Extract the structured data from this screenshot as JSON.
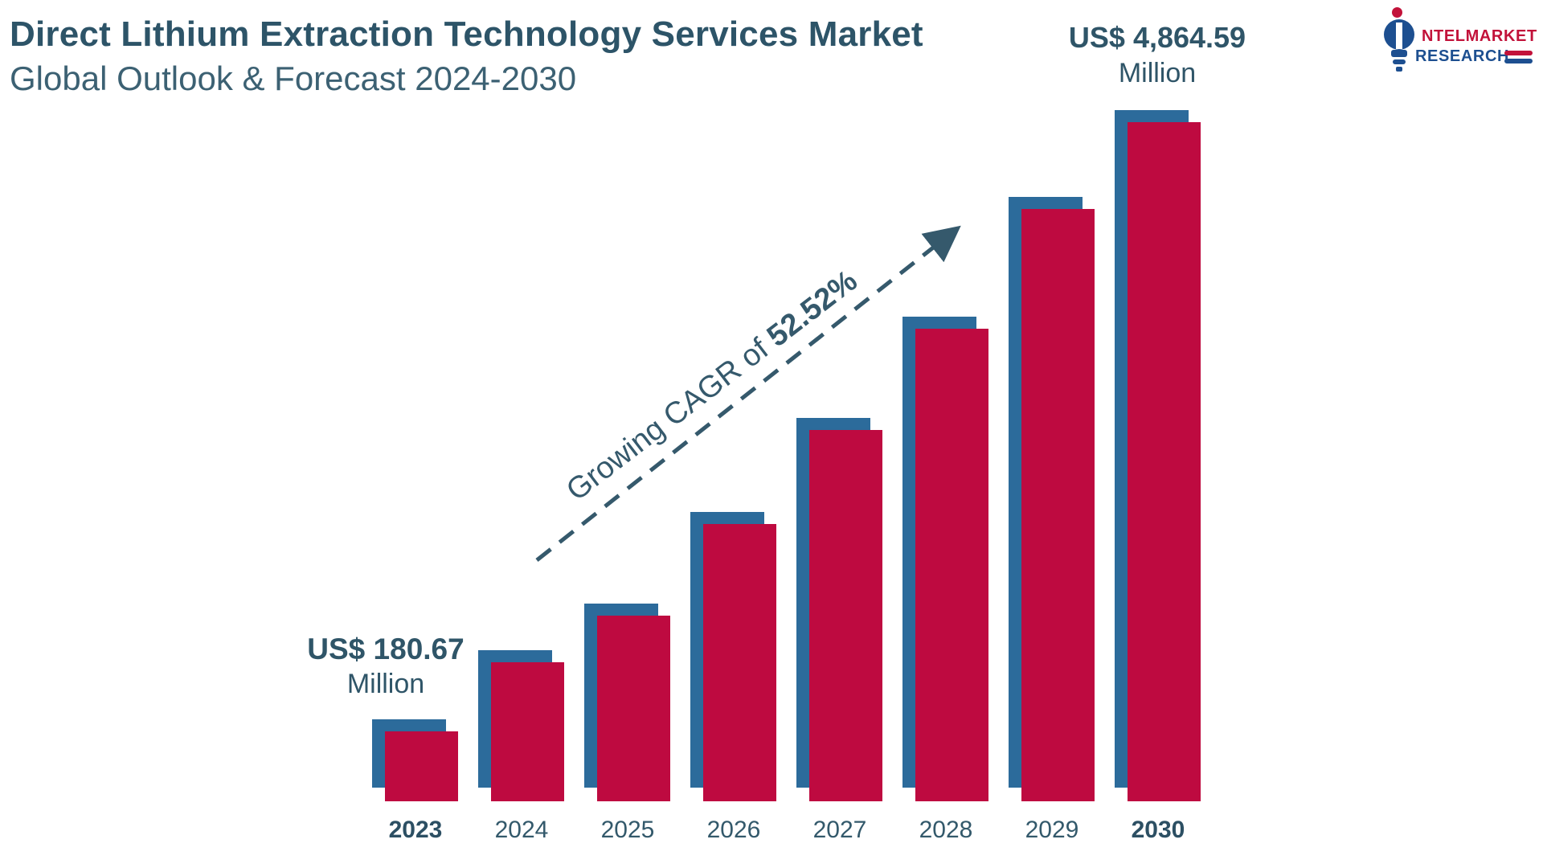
{
  "header": {
    "title": "Direct Lithium Extraction Technology Services Market",
    "subtitle": "Global Outlook & Forecast 2024-2030"
  },
  "logo": {
    "brand_line1": "NTELMARKET",
    "brand_line2": "RESEARCH",
    "icon": "lightbulb-i-icon",
    "colors": {
      "red": "#c2123a",
      "blue": "#1d4f90"
    }
  },
  "chart_data": {
    "type": "bar",
    "title": "Direct Lithium Extraction Technology Services Market",
    "subtitle": "Global Outlook & Forecast 2024-2030",
    "categories": [
      "2023",
      "2024",
      "2025",
      "2026",
      "2027",
      "2028",
      "2029",
      "2030"
    ],
    "values_usd_million": [
      180.67,
      null,
      null,
      null,
      null,
      null,
      null,
      4864.59
    ],
    "relative_bar_heights": [
      0.101,
      0.203,
      0.272,
      0.407,
      0.546,
      0.695,
      0.872,
      1.0
    ],
    "cagr_percent": 52.52,
    "bold_categories": [
      "2023",
      "2030"
    ],
    "annotations": {
      "first_bar_label": {
        "year": "2023",
        "value": "US$ 180.67",
        "unit": "Million"
      },
      "last_bar_label": {
        "year": "2030",
        "value": "US$ 4,864.59",
        "unit": "Million"
      },
      "growth_text_prefix": "Growing CAGR of ",
      "growth_text_value": "52.52%"
    },
    "legend": "none",
    "grid": false,
    "y_axis": "none",
    "bar_style": "offset-shadow-pair",
    "colors": {
      "bar_front": "#be0a40",
      "bar_back": "#2c6b9b",
      "text": "#33596b",
      "arrow": "#35596c"
    }
  }
}
